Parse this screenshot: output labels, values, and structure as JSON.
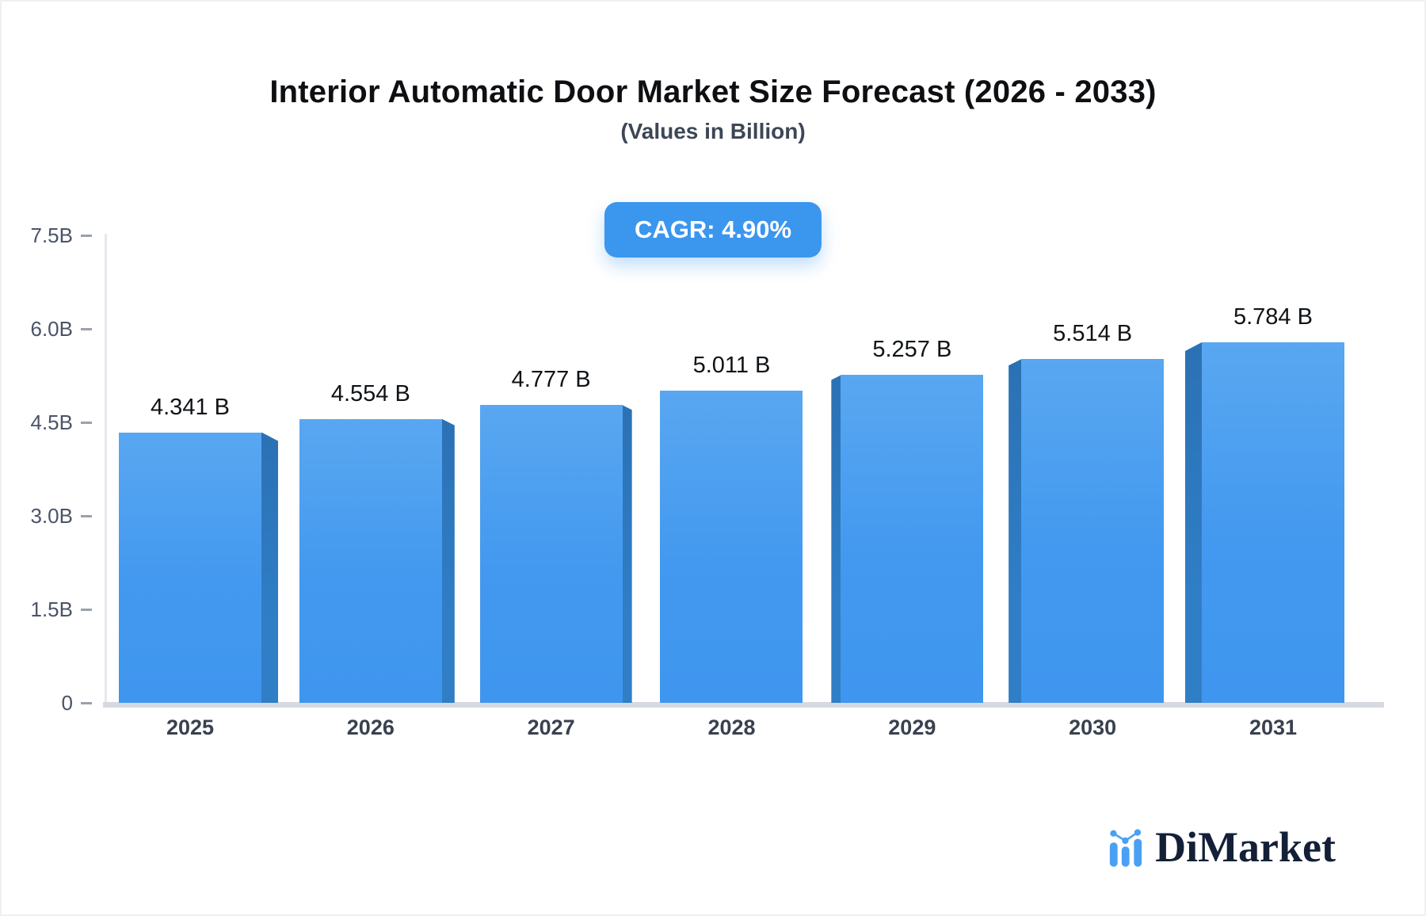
{
  "header": {
    "title": "Interior Automatic Door Market Size Forecast (2026 - 2033)",
    "subtitle": "(Values in Billion)",
    "cagr_label": "CAGR: 4.90%"
  },
  "chart_data": {
    "type": "bar",
    "title": "Interior Automatic Door Market Size Forecast (2026 - 2033)",
    "subtitle": "(Values in Billion)",
    "cagr_percent": 4.9,
    "categories": [
      "2025",
      "2026",
      "2027",
      "2028",
      "2029",
      "2030",
      "2031"
    ],
    "values": [
      4.341,
      4.554,
      4.777,
      5.011,
      5.257,
      5.514,
      5.784
    ],
    "value_labels": [
      "4.341 B",
      "4.554 B",
      "4.777 B",
      "5.011 B",
      "5.257 B",
      "5.514 B",
      "5.784 B"
    ],
    "unit": "Billion",
    "ylim": [
      0,
      7.5
    ],
    "ytick_values": [
      0,
      1.5,
      3.0,
      4.5,
      6.0,
      7.5
    ],
    "ytick_labels": [
      "0",
      "1.5B",
      "3.0B",
      "4.5B",
      "6.0B",
      "7.5B"
    ],
    "grid": false,
    "legend_position": "none",
    "bar_color": "#4399ef",
    "bar_side_color": "#2d78bf",
    "accent_color": "#3b96ee"
  },
  "footer": {
    "brand": "DiMarket"
  }
}
